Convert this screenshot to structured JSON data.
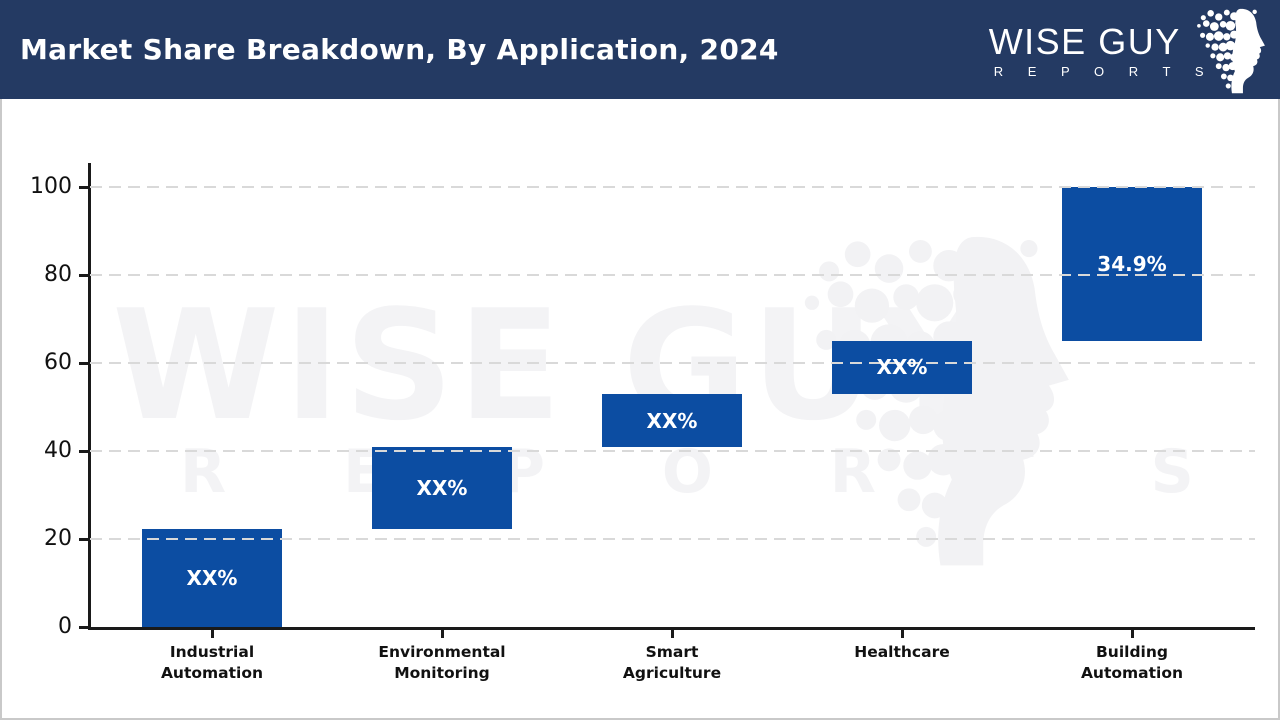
{
  "header": {
    "title": "Market Share Breakdown, By Application, 2024",
    "logo": {
      "name": "WISE GUY",
      "sub": "R E P O R T S"
    }
  },
  "watermark": {
    "line1": "WISE GUY",
    "line2": "R E P O R T S"
  },
  "colors": {
    "header_bg": "#243a63",
    "title_text": "#ffffff",
    "bar": "#0c4da2",
    "bar_label": "#ffffff",
    "gridline": "#d9d9d9",
    "axis": "#1a1a1a",
    "watermark": "#f3f3f5",
    "page_border": "#c9c9c9"
  },
  "chart_data": {
    "type": "bar",
    "subtype": "waterfall",
    "title": "Market Share Breakdown, By Application, 2024",
    "xlabel": "",
    "ylabel": "",
    "categories": [
      "Industrial Automation",
      "Environmental Monitoring",
      "Smart Agriculture",
      "Healthcare",
      "Building Automation"
    ],
    "bars": [
      {
        "category": "Industrial Automation",
        "start": 0,
        "end": 22.3,
        "label": "XX%"
      },
      {
        "category": "Environmental Monitoring",
        "start": 22.3,
        "end": 40.8,
        "label": "XX%"
      },
      {
        "category": "Smart Agriculture",
        "start": 40.8,
        "end": 53.0,
        "label": "XX%"
      },
      {
        "category": "Healthcare",
        "start": 53.0,
        "end": 65.1,
        "label": "XX%"
      },
      {
        "category": "Building Automation",
        "start": 65.1,
        "end": 100,
        "label": "34.9%"
      }
    ],
    "segment_values_est": [
      22.3,
      18.5,
      12.2,
      12.1,
      34.9
    ],
    "yticks": [
      0,
      20,
      40,
      60,
      80,
      100
    ],
    "ylim": [
      0,
      105.5
    ],
    "grid": "dashed-horizontal",
    "legend": "none"
  }
}
